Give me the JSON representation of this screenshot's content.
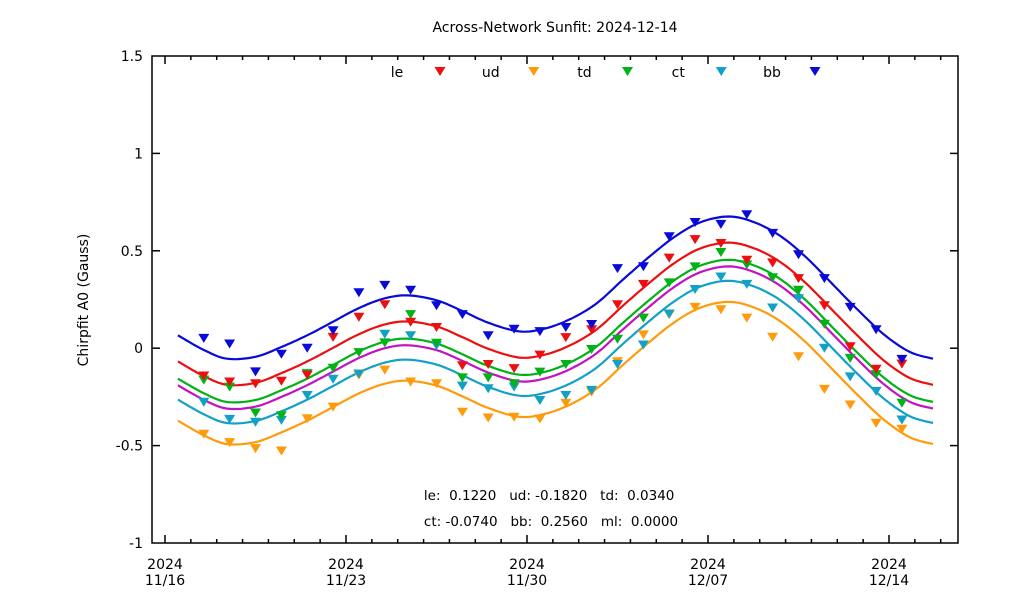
{
  "title": "Across-Network Sunfit: 2024-12-14",
  "y_axis_label": "Chirpfit A0 (Gauss)",
  "annotation": {
    "line1": "le:  0.1220   ud: -0.1820   td:  0.0340",
    "line2": "ct: -0.0740   bb:  0.2560   ml:  0.0000"
  },
  "chart_data": {
    "type": "line",
    "title": "Across-Network Sunfit: 2024-12-14",
    "xlabel": "",
    "ylabel": "Chirpfit A0 (Gauss)",
    "ylim": [
      -1,
      1.5
    ],
    "grid": false,
    "legend_position": "top-center-inside",
    "x_unit": "days since 2024-11-16",
    "xlim_days": [
      -0.5,
      30.67
    ],
    "y_ticks": [
      -1,
      -0.5,
      0,
      0.5,
      1,
      1.5
    ],
    "y_tick_labels": [
      "-1",
      "-0.5",
      "0",
      "0.5",
      "1",
      "1.5"
    ],
    "x_major_ticks": [
      {
        "day": 0,
        "year": "2024",
        "date": "11/16"
      },
      {
        "day": 7,
        "year": "2024",
        "date": "11/23"
      },
      {
        "day": 14,
        "year": "2024",
        "date": "11/30"
      },
      {
        "day": 21,
        "year": "2024",
        "date": "12/07"
      },
      {
        "day": 28,
        "year": "2024",
        "date": "12/14"
      }
    ],
    "minor_tick_interval_days": 1,
    "fit_coefficients": {
      "le": 0.122,
      "ud": -0.182,
      "td": 0.034,
      "ct": -0.074,
      "bb": 0.256,
      "ml": 0.0
    },
    "baseline_curve_ml": [
      [
        0.5,
        -0.19
      ],
      [
        1.5,
        -0.265
      ],
      [
        2.4,
        -0.31
      ],
      [
        3.5,
        -0.3
      ],
      [
        4.5,
        -0.25
      ],
      [
        5.5,
        -0.19
      ],
      [
        6.5,
        -0.12
      ],
      [
        7.5,
        -0.05
      ],
      [
        8.5,
        0.0
      ],
      [
        9.4,
        0.015
      ],
      [
        10.5,
        -0.01
      ],
      [
        11.5,
        -0.065
      ],
      [
        12.5,
        -0.125
      ],
      [
        13.7,
        -0.17
      ],
      [
        14.7,
        -0.155
      ],
      [
        15.7,
        -0.105
      ],
      [
        16.7,
        -0.025
      ],
      [
        17.7,
        0.095
      ],
      [
        18.7,
        0.21
      ],
      [
        19.7,
        0.315
      ],
      [
        20.7,
        0.39
      ],
      [
        21.8,
        0.42
      ],
      [
        22.8,
        0.39
      ],
      [
        23.8,
        0.32
      ],
      [
        24.8,
        0.21
      ],
      [
        25.8,
        0.075
      ],
      [
        26.8,
        -0.06
      ],
      [
        27.8,
        -0.185
      ],
      [
        28.8,
        -0.275
      ],
      [
        29.7,
        -0.31
      ]
    ],
    "curve_day_range": [
      0.5,
      29.7
    ],
    "series": [
      {
        "name": "ud",
        "color": "#ff9b0a",
        "offset": -0.182,
        "marker": "triangle-down",
        "points": [
          [
            1.5,
            -0.439
          ],
          [
            2.5,
            -0.482
          ],
          [
            3.5,
            -0.513
          ],
          [
            4.5,
            -0.525
          ],
          [
            5.5,
            -0.36
          ],
          [
            6.5,
            -0.3
          ],
          [
            7.5,
            -0.136
          ],
          [
            8.5,
            -0.11
          ],
          [
            9.5,
            -0.171
          ],
          [
            10.5,
            -0.18
          ],
          [
            11.5,
            -0.326
          ],
          [
            12.5,
            -0.356
          ],
          [
            13.5,
            -0.352
          ],
          [
            14.5,
            -0.361
          ],
          [
            15.5,
            -0.28
          ],
          [
            16.5,
            -0.223
          ],
          [
            17.5,
            -0.067
          ],
          [
            18.5,
            0.071
          ],
          [
            19.5,
            0.175
          ],
          [
            20.5,
            0.212
          ],
          [
            21.5,
            0.2
          ],
          [
            22.5,
            0.157
          ],
          [
            23.5,
            0.059
          ],
          [
            24.5,
            -0.041
          ],
          [
            25.5,
            -0.209
          ],
          [
            26.5,
            -0.289
          ],
          [
            27.5,
            -0.383
          ],
          [
            28.5,
            -0.413
          ]
        ]
      },
      {
        "name": "ct",
        "color": "#12a1c6",
        "offset": -0.074,
        "marker": "triangle-down",
        "points": [
          [
            1.5,
            -0.275
          ],
          [
            2.5,
            -0.363
          ],
          [
            3.5,
            -0.378
          ],
          [
            4.5,
            -0.368
          ],
          [
            5.5,
            -0.24
          ],
          [
            6.5,
            -0.157
          ],
          [
            7.5,
            -0.13
          ],
          [
            8.5,
            0.074
          ],
          [
            9.5,
            0.066
          ],
          [
            10.5,
            0.016
          ],
          [
            11.5,
            -0.192
          ],
          [
            12.5,
            -0.206
          ],
          [
            13.5,
            -0.197
          ],
          [
            14.5,
            -0.266
          ],
          [
            15.5,
            -0.24
          ],
          [
            16.5,
            -0.214
          ],
          [
            17.5,
            -0.081
          ],
          [
            18.5,
            0.019
          ],
          [
            19.5,
            0.178
          ],
          [
            20.5,
            0.304
          ],
          [
            21.5,
            0.368
          ],
          [
            22.5,
            0.33
          ],
          [
            23.5,
            0.209
          ],
          [
            24.5,
            0.257
          ],
          [
            25.5,
            0.002
          ],
          [
            26.5,
            -0.145
          ],
          [
            27.5,
            -0.219
          ],
          [
            28.5,
            -0.366
          ]
        ]
      },
      {
        "name": "td",
        "color": "#00b215",
        "offset": 0.034,
        "marker": "triangle-down",
        "points": [
          [
            1.5,
            -0.161
          ],
          [
            2.5,
            -0.197
          ],
          [
            3.5,
            -0.33
          ],
          [
            4.5,
            -0.344
          ],
          [
            5.5,
            -0.128
          ],
          [
            6.5,
            -0.1
          ],
          [
            7.5,
            -0.02
          ],
          [
            8.5,
            0.03
          ],
          [
            9.5,
            0.175
          ],
          [
            10.5,
            0.028
          ],
          [
            11.5,
            -0.15
          ],
          [
            12.5,
            -0.15
          ],
          [
            13.5,
            -0.18
          ],
          [
            14.5,
            -0.12
          ],
          [
            15.5,
            -0.081
          ],
          [
            16.5,
            -0.004
          ],
          [
            17.5,
            0.048
          ],
          [
            18.5,
            0.157
          ],
          [
            19.5,
            0.338
          ],
          [
            20.5,
            0.42
          ],
          [
            21.5,
            0.494
          ],
          [
            22.5,
            0.43
          ],
          [
            23.5,
            0.364
          ],
          [
            24.5,
            0.3
          ],
          [
            25.5,
            0.126
          ],
          [
            26.5,
            -0.05
          ],
          [
            27.5,
            -0.133
          ],
          [
            28.5,
            -0.28
          ]
        ]
      },
      {
        "name": "le",
        "color": "#ec0f10",
        "offset": 0.122,
        "marker": "triangle-down",
        "points": [
          [
            1.5,
            -0.14
          ],
          [
            2.5,
            -0.171
          ],
          [
            3.5,
            -0.18
          ],
          [
            4.5,
            -0.167
          ],
          [
            5.5,
            -0.136
          ],
          [
            6.5,
            0.058
          ],
          [
            7.5,
            0.161
          ],
          [
            8.5,
            0.226
          ],
          [
            9.5,
            0.136
          ],
          [
            10.5,
            0.109
          ],
          [
            11.5,
            -0.088
          ],
          [
            12.5,
            -0.081
          ],
          [
            13.5,
            -0.102
          ],
          [
            14.5,
            -0.033
          ],
          [
            15.5,
            0.057
          ],
          [
            16.5,
            0.097
          ],
          [
            17.5,
            0.226
          ],
          [
            18.5,
            0.33
          ],
          [
            19.5,
            0.465
          ],
          [
            20.5,
            0.56
          ],
          [
            21.5,
            0.54
          ],
          [
            22.5,
            0.454
          ],
          [
            23.5,
            0.44
          ],
          [
            24.5,
            0.36
          ],
          [
            25.5,
            0.22
          ],
          [
            26.5,
            0.01
          ],
          [
            27.5,
            -0.105
          ],
          [
            28.5,
            -0.079
          ]
        ]
      },
      {
        "name": "bb",
        "color": "#0a0ad8",
        "offset": 0.256,
        "marker": "triangle-down",
        "points": [
          [
            1.5,
            0.053
          ],
          [
            2.5,
            0.024
          ],
          [
            3.5,
            -0.119
          ],
          [
            4.5,
            -0.029
          ],
          [
            5.5,
            0.002
          ],
          [
            6.5,
            0.092
          ],
          [
            7.5,
            0.287
          ],
          [
            8.5,
            0.325
          ],
          [
            9.5,
            0.3
          ],
          [
            10.5,
            0.22
          ],
          [
            11.5,
            0.175
          ],
          [
            12.5,
            0.066
          ],
          [
            13.5,
            0.1
          ],
          [
            14.5,
            0.088
          ],
          [
            15.5,
            0.109
          ],
          [
            16.5,
            0.124
          ],
          [
            17.5,
            0.411
          ],
          [
            18.5,
            0.421
          ],
          [
            19.5,
            0.575
          ],
          [
            20.5,
            0.648
          ],
          [
            21.5,
            0.638
          ],
          [
            22.5,
            0.688
          ],
          [
            23.5,
            0.592
          ],
          [
            24.5,
            0.482
          ],
          [
            25.5,
            0.36
          ],
          [
            26.5,
            0.212
          ],
          [
            27.5,
            0.097
          ],
          [
            28.5,
            -0.055
          ]
        ]
      },
      {
        "name": "ml",
        "color": "#c213c2",
        "offset": 0.0,
        "marker": "none",
        "points": []
      }
    ],
    "legend_order": [
      "le",
      "ud",
      "td",
      "ct",
      "bb"
    ]
  }
}
